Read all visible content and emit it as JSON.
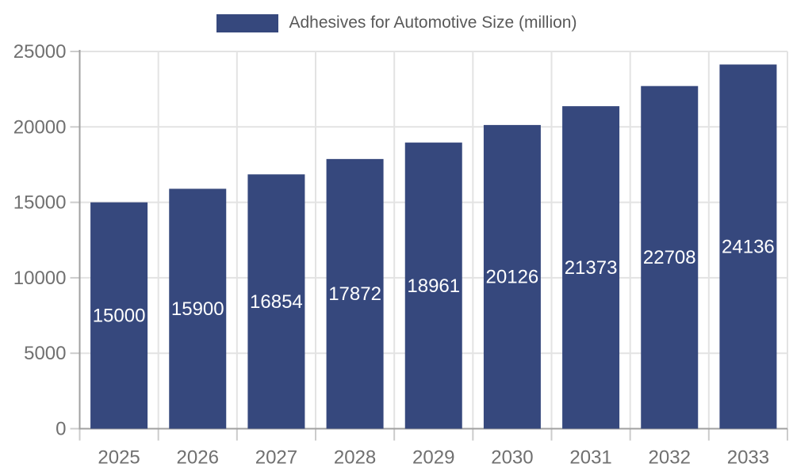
{
  "legend": {
    "label": "Adhesives for Automotive Size (million)"
  },
  "chart_data": {
    "type": "bar",
    "title": "Adhesives for Automotive Size (million)",
    "series_name": "Adhesives for Automotive Size (million)",
    "categories": [
      "2025",
      "2026",
      "2027",
      "2028",
      "2029",
      "2030",
      "2031",
      "2032",
      "2033"
    ],
    "values": [
      15000,
      15900,
      16854,
      17872,
      18961,
      20126,
      21373,
      22708,
      24136
    ],
    "xlabel": "",
    "ylabel": "",
    "ylim": [
      0,
      25000
    ],
    "yticks": [
      0,
      5000,
      10000,
      15000,
      20000,
      25000
    ],
    "grid": true,
    "legend_position": "top-center",
    "value_labels": "inside-center-white",
    "colors": {
      "bar": "#36487d",
      "value_label": "#ffffff",
      "axis_line": "#a0a0a0",
      "tick_line": "#cccccc",
      "grid_line": "#e3e3e3",
      "tick_label": "#707070",
      "legend_text": "#595959",
      "background": "#ffffff"
    }
  }
}
